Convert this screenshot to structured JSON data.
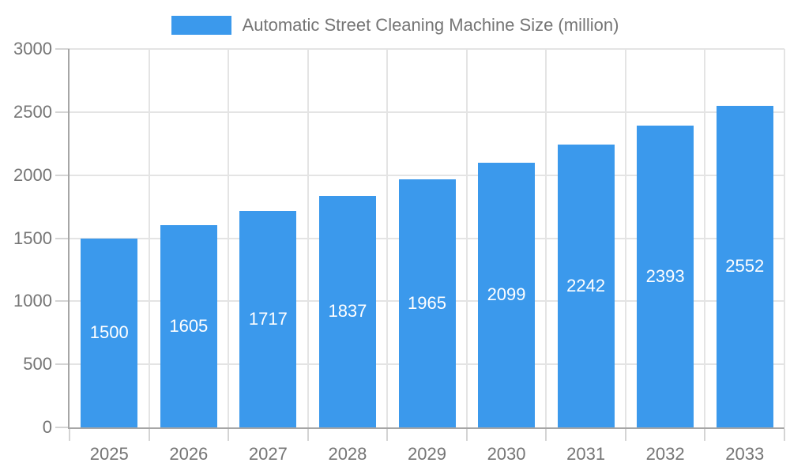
{
  "legend": {
    "label": "Automatic Street Cleaning Machine Size (million)"
  },
  "chart_data": {
    "type": "bar",
    "title": "Automatic Street Cleaning Machine Size (million)",
    "categories": [
      "2025",
      "2026",
      "2027",
      "2028",
      "2029",
      "2030",
      "2031",
      "2032",
      "2033"
    ],
    "series": [
      {
        "name": "Automatic Street Cleaning Machine Size (million)",
        "values": [
          1500,
          1605,
          1717,
          1837,
          1965,
          2099,
          2242,
          2393,
          2552
        ]
      }
    ],
    "value_labels_shown": true,
    "value_label_position": "center-of-bar",
    "xlabel": "",
    "ylabel": "",
    "ylim": [
      0,
      3000
    ],
    "yticks": [
      0,
      500,
      1000,
      1500,
      2000,
      2500,
      3000
    ],
    "grid": "horizontal-and-vertical",
    "legend_position": "top-center",
    "colors": {
      "bar": "#3B99EC",
      "value_label": "#FFFFFF",
      "axis_text": "#757575",
      "legend_text": "#757575",
      "axis_line": "#A6A6A6",
      "tick": "#D4D4D4",
      "gridline": "#E4E4E4",
      "background": "#FFFFFF"
    }
  }
}
